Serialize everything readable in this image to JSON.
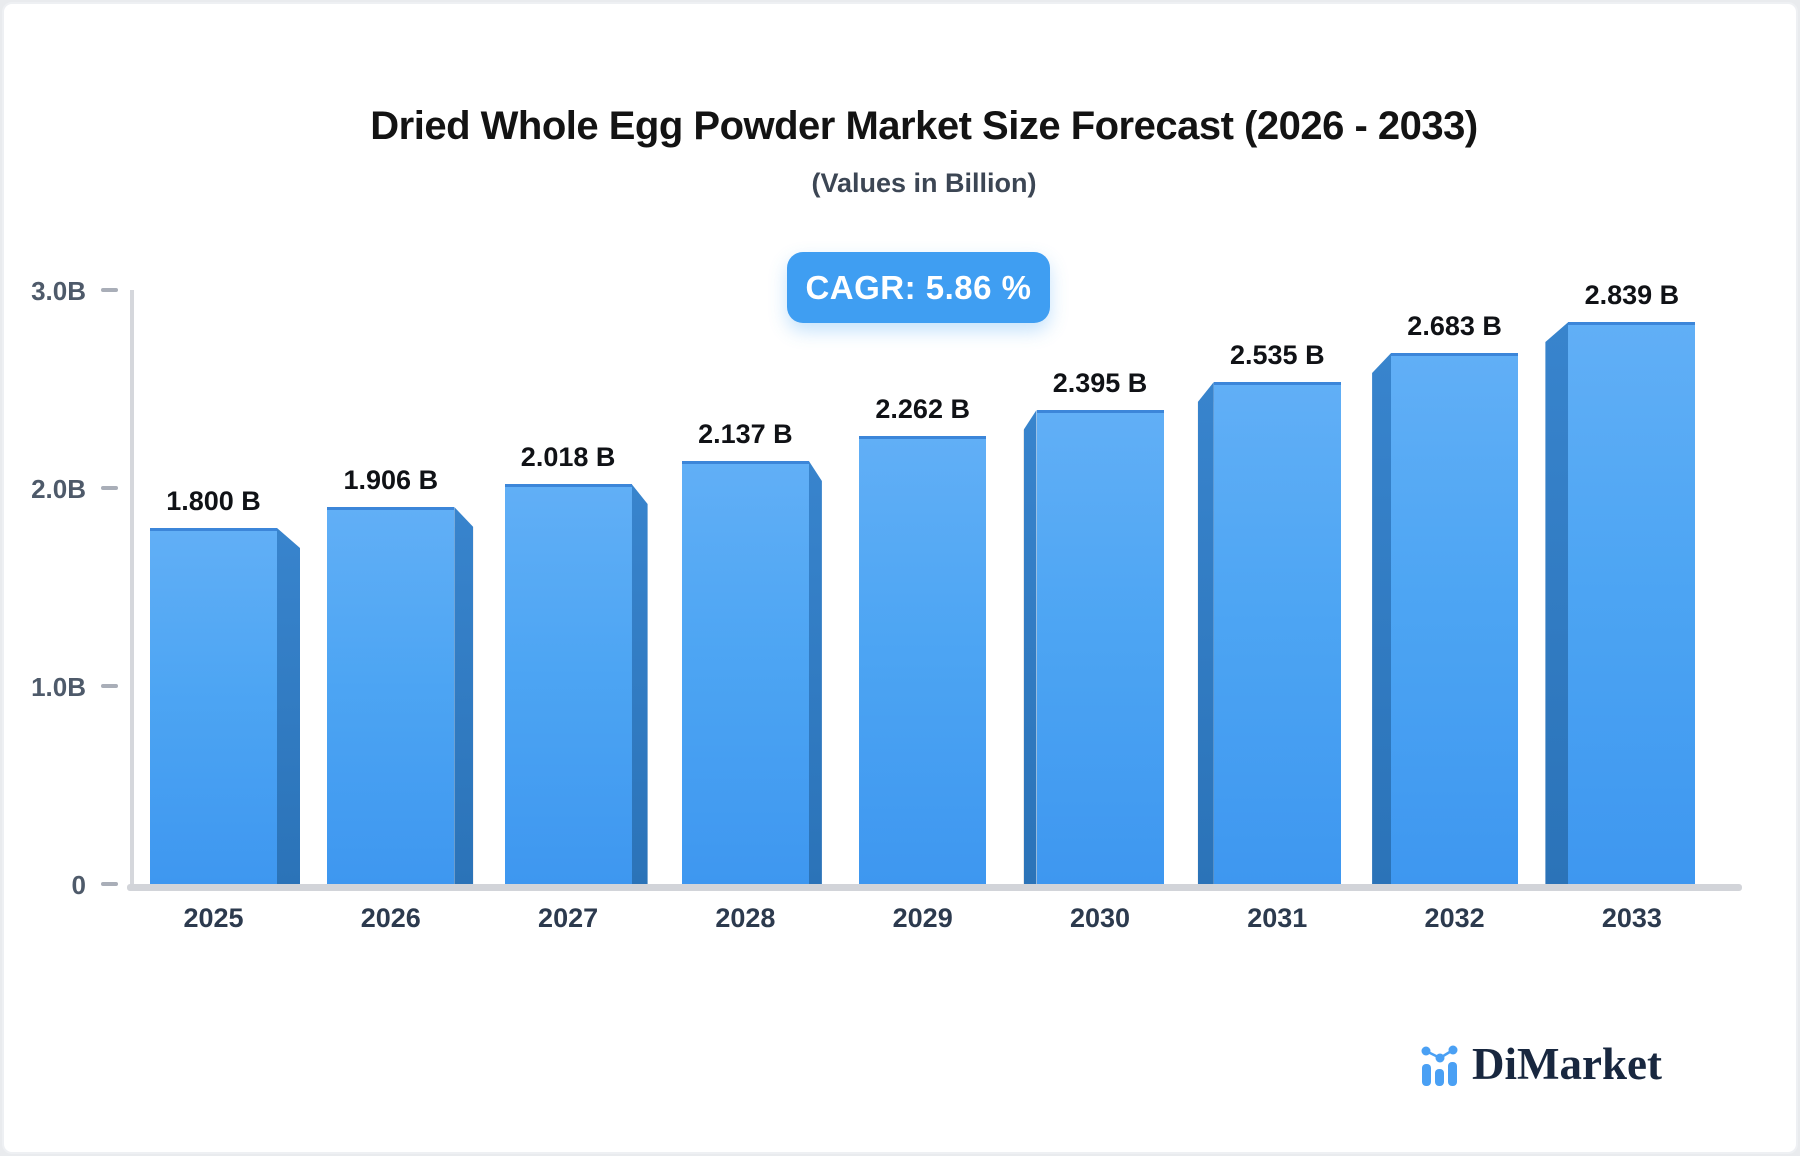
{
  "header": {
    "title": "Dried Whole Egg Powder Market Size Forecast (2026 - 2033)",
    "subtitle": "(Values in Billion)"
  },
  "cagr_badge": "CAGR: 5.86 %",
  "chart_data": {
    "type": "bar",
    "title": "Dried Whole Egg Powder Market Size Forecast (2026 - 2033)",
    "subtitle": "(Values in Billion)",
    "categories": [
      "2025",
      "2026",
      "2027",
      "2028",
      "2029",
      "2030",
      "2031",
      "2032",
      "2033"
    ],
    "values": [
      1.8,
      1.906,
      2.018,
      2.137,
      2.262,
      2.395,
      2.535,
      2.683,
      2.839
    ],
    "value_labels": [
      "1.800 B",
      "1.906 B",
      "2.018 B",
      "2.137 B",
      "2.262 B",
      "2.395 B",
      "2.535 B",
      "2.683 B",
      "2.839 B"
    ],
    "cagr": "5.86 %",
    "y_axis": {
      "ticks": [
        {
          "label": "3.0B",
          "value": 3.0
        },
        {
          "label": "2.0B",
          "value": 2.0
        },
        {
          "label": "1.0B",
          "value": 1.0
        },
        {
          "label": "0",
          "value": 0.0
        }
      ],
      "range": [
        0,
        3.0
      ]
    },
    "grid": "off",
    "legend": "none",
    "bar_style": "3d-beveled",
    "bar_face_color": "#46a0f2",
    "bar_side_color": "#2e79c0"
  },
  "branding": {
    "name": "DiMarket"
  },
  "colors": {
    "accent_blue": "#3f9ef2",
    "bar_face_top": "#61aff6",
    "bar_face_bottom": "#3e97f0",
    "bar_side": "#2e79c0",
    "axis_gray": "#d2d4d9",
    "title_text": "#131313",
    "slate_text": "#2c3a4e",
    "logo_navy": "#18273f",
    "logo_blue": "#4aa0f4"
  }
}
